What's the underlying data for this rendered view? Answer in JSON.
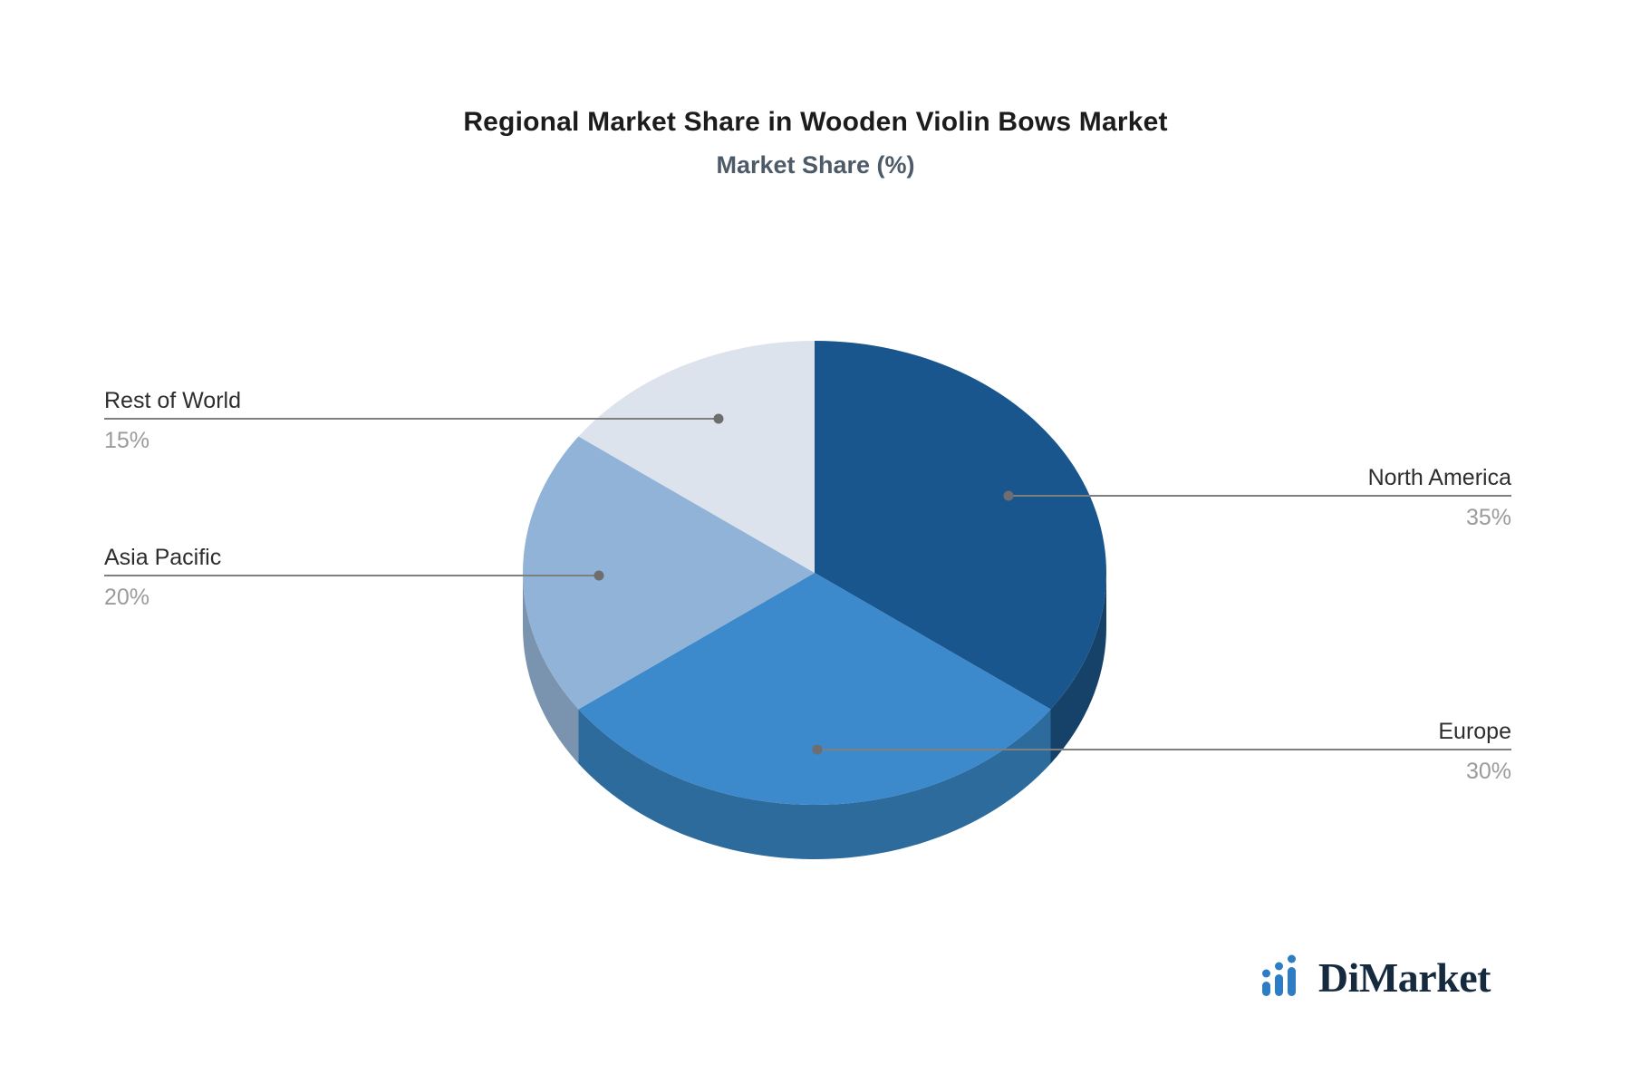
{
  "header": {
    "title": "Regional Market Share in Wooden Violin Bows Market",
    "subtitle": "Market Share (%)"
  },
  "chart_data": {
    "type": "pie",
    "style": "3d",
    "title": "Regional Market Share in Wooden Violin Bows Market",
    "subtitle": "Market Share (%)",
    "unit": "%",
    "direction": "clockwise",
    "start_angle": "top",
    "legend": "none",
    "labels_position": "outside-leader-lines",
    "slices": [
      {
        "label": "North America",
        "value": 35,
        "pct": "35%",
        "color": "#1A568E",
        "wall_color": "#164168"
      },
      {
        "label": "Europe",
        "value": 30,
        "pct": "30%",
        "color": "#3C89CB",
        "wall_color": "#2D6B9D"
      },
      {
        "label": "Asia Pacific",
        "value": 20,
        "pct": "20%",
        "color": "#91B3D7",
        "wall_color": "#7A93AE"
      },
      {
        "label": "Rest of World",
        "value": 15,
        "pct": "15%",
        "color": "#DCE3ED",
        "wall_color": "#B9C4D4"
      }
    ]
  },
  "branding": {
    "logo_text": "DiMarket"
  },
  "colors": {
    "background": "#FFFFFF",
    "leader_line": "#7F7F7F",
    "dot": "#6E6E6E",
    "label_text": "#2E2E2E",
    "pct_text": "#9B9B9B",
    "title_text": "#1C1C1C",
    "subtitle_text": "#4D5A68",
    "logo_text": "#152A3F",
    "logo_icon": "#2E7CC3"
  }
}
